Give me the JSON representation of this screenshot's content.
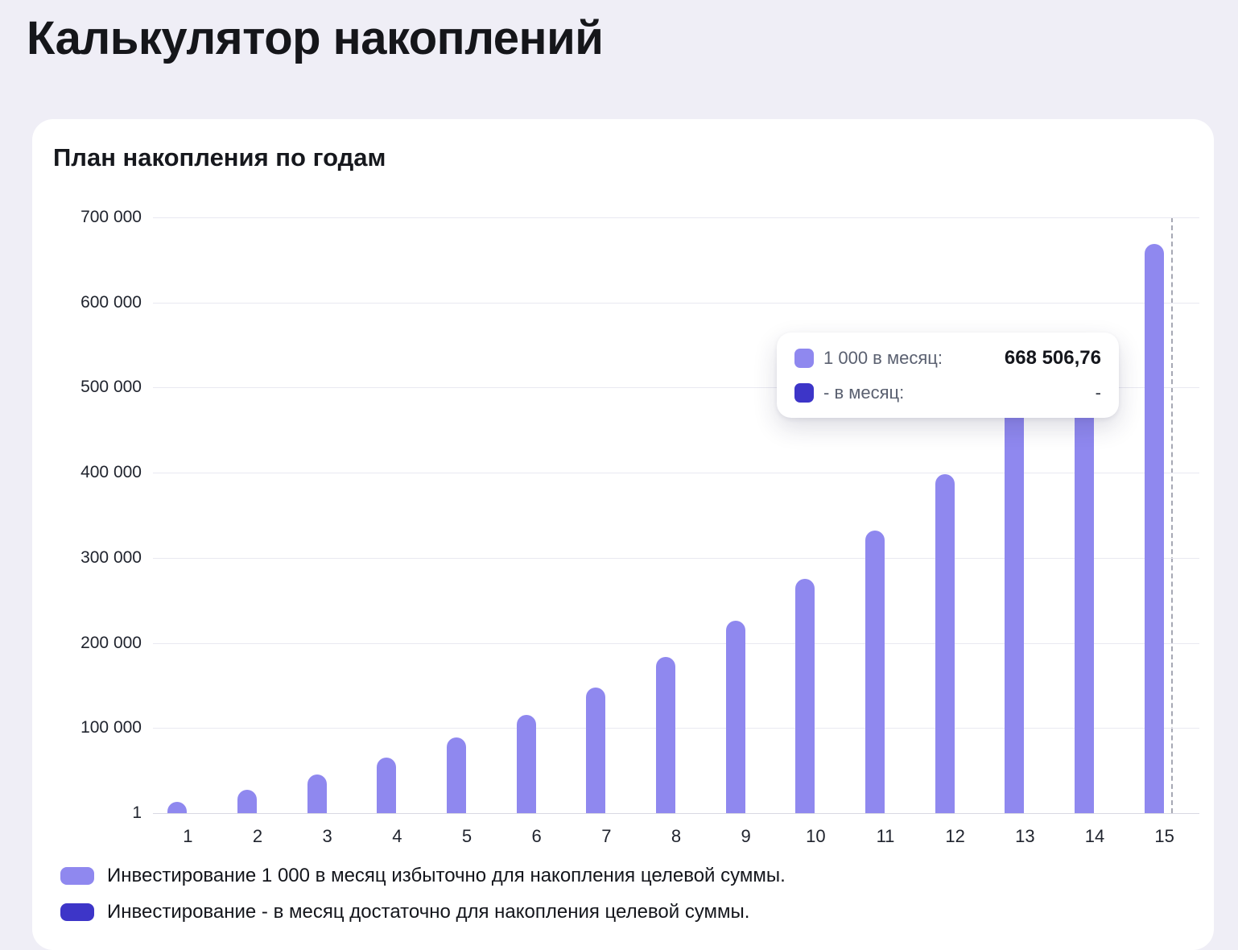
{
  "header": {
    "title": "Калькулятор накоплений"
  },
  "card": {
    "title": "План накопления по годам"
  },
  "colors": {
    "background": "#EFEEF6",
    "card_bg": "#FFFFFF",
    "series1": "#8F88EF",
    "series2": "#3D35C8",
    "grid": "#E9E9F1",
    "marker": "#A6A8B4"
  },
  "tooltip": {
    "rows": [
      {
        "label": "1 000 в месяц:",
        "value": "668 506,76"
      },
      {
        "label": "- в месяц:",
        "value": "-"
      }
    ]
  },
  "legend": {
    "items": [
      {
        "text": "Инвестирование 1 000 в месяц избыточно для накопления целевой суммы."
      },
      {
        "text": "Инвестирование - в месяц достаточно для накопления целевой суммы."
      }
    ]
  },
  "chart_data": {
    "type": "bar",
    "title": "План накопления по годам",
    "xlabel": "",
    "ylabel": "",
    "grid": true,
    "legend_position": "bottom",
    "categories": [
      1,
      2,
      3,
      4,
      5,
      6,
      7,
      8,
      9,
      10,
      11,
      12,
      13,
      14,
      15
    ],
    "series": [
      {
        "name": "1 000 в месяц",
        "color": "#8F88EF",
        "values": [
          12861,
          27789,
          45116,
          65228,
          88575,
          115674,
          147129,
          183641,
          226022,
          275217,
          332320,
          398602,
          475539,
          564844,
          668506.76
        ]
      },
      {
        "name": "- в месяц",
        "color": "#3D35C8",
        "values": [
          null,
          null,
          null,
          null,
          null,
          null,
          null,
          null,
          null,
          null,
          null,
          null,
          null,
          null,
          null
        ]
      }
    ],
    "ylim": [
      1,
      700000
    ],
    "yticks": [
      {
        "value": 700000,
        "label": "700 000"
      },
      {
        "value": 600000,
        "label": "600 000"
      },
      {
        "value": 500000,
        "label": "500 000"
      },
      {
        "value": 400000,
        "label": "400 000"
      },
      {
        "value": 300000,
        "label": "300 000"
      },
      {
        "value": 200000,
        "label": "200 000"
      },
      {
        "value": 100000,
        "label": "100 000"
      },
      {
        "value": 1,
        "label": "1"
      }
    ],
    "marker_x": 15
  }
}
